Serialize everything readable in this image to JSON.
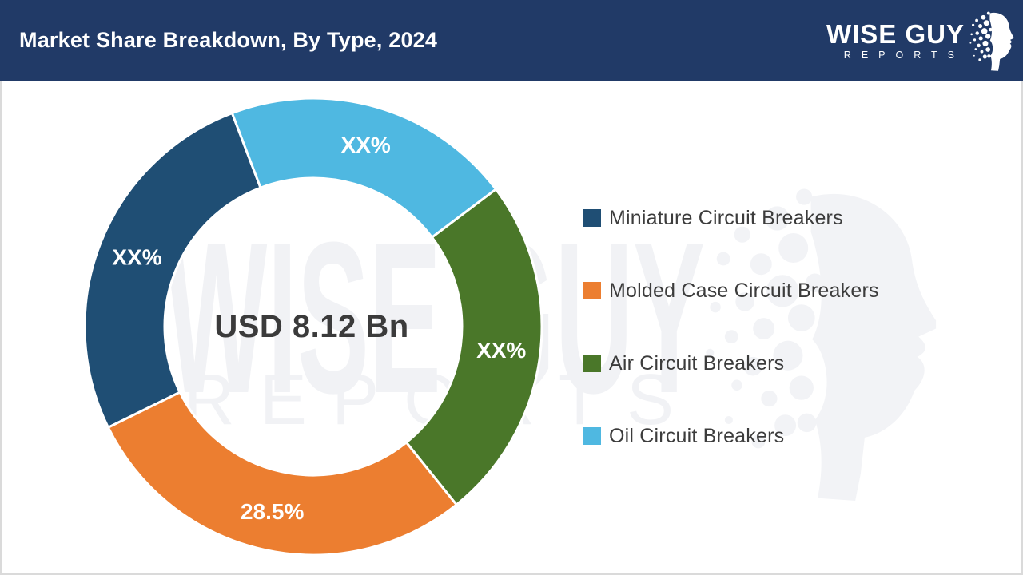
{
  "header": {
    "title": "Market Share Breakdown, By Type, 2024",
    "bg_color": "#213a67",
    "logo": {
      "line1": "WISE GUY",
      "line2": "REPORTS"
    }
  },
  "watermark": {
    "line1": "WISE GUY",
    "line2": "REPORTS"
  },
  "chart_data": {
    "type": "pie",
    "title": "Market Share Breakdown, By Type, 2024",
    "donut": true,
    "center_total": "USD 8.12 Bn",
    "start_angle_deg": -20.8,
    "legend_position": "right",
    "segments": [
      {
        "label": "Oil Circuit Breakers",
        "value_pct": 20.5,
        "display_label": "XX%",
        "color": "#4fb8e1"
      },
      {
        "label": "Air Circuit Breakers",
        "value_pct": 24.5,
        "display_label": "XX%",
        "color": "#4a7729"
      },
      {
        "label": "Molded Case Circuit Breakers",
        "value_pct": 28.5,
        "display_label": "28.5%",
        "color": "#ec7e30"
      },
      {
        "label": "Miniature Circuit Breakers",
        "value_pct": 26.5,
        "display_label": "XX%",
        "color": "#1f4e74"
      }
    ],
    "legend": [
      {
        "label": "Miniature Circuit Breakers",
        "color": "#1f4e74"
      },
      {
        "label": "Molded Case Circuit Breakers",
        "color": "#ec7e30"
      },
      {
        "label": "Air Circuit Breakers",
        "color": "#4a7729"
      },
      {
        "label": "Oil Circuit Breakers",
        "color": "#4fb8e1"
      }
    ]
  }
}
